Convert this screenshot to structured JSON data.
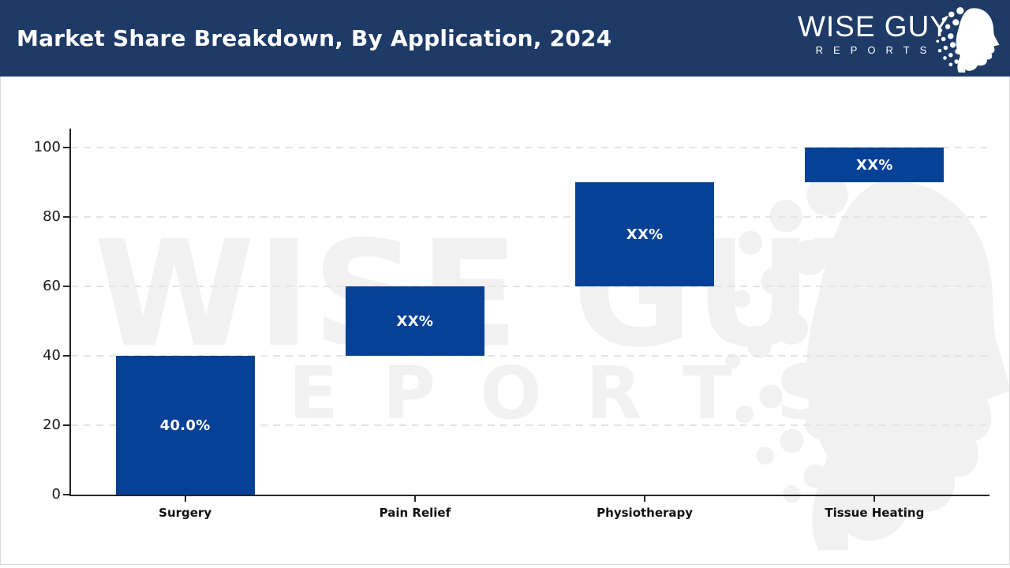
{
  "header": {
    "title": "Market Share Breakdown, By Application, 2024",
    "bg_color": "#1e3a66",
    "text_color": "#ffffff",
    "logo": {
      "line1": "WISE GUY",
      "line2": "REPORTS",
      "head_icon": "dotted-head-profile"
    }
  },
  "watermark": {
    "line1": "WISE GUY",
    "line2": "REPORTS",
    "color": "#f1f1f2",
    "head_icon": "dotted-head-profile"
  },
  "chart_data": {
    "type": "bar",
    "variant": "waterfall",
    "title": "Market Share Breakdown, By Application, 2024",
    "xlabel": "",
    "ylabel": "",
    "categories": [
      "Surgery",
      "Pain Relief",
      "Physiotherapy",
      "Tissue Heating"
    ],
    "segments": [
      {
        "category": "Surgery",
        "start": 0,
        "end": 40,
        "value": 40,
        "label": "40.0%"
      },
      {
        "category": "Pain Relief",
        "start": 40,
        "end": 60,
        "value": 20,
        "label": "XX%"
      },
      {
        "category": "Physiotherapy",
        "start": 60,
        "end": 90,
        "value": 30,
        "label": "XX%"
      },
      {
        "category": "Tissue Heating",
        "start": 90,
        "end": 100,
        "value": 10,
        "label": "XX%"
      }
    ],
    "yticks": [
      0,
      20,
      40,
      60,
      80,
      100
    ],
    "ylim": [
      0,
      105
    ],
    "grid": "horizontal-dashed",
    "legend": "none",
    "bar_color": "#064196",
    "bar_label_color": "#ffffff",
    "axis_color": "#262626",
    "grid_color": "#e4e4e6"
  }
}
